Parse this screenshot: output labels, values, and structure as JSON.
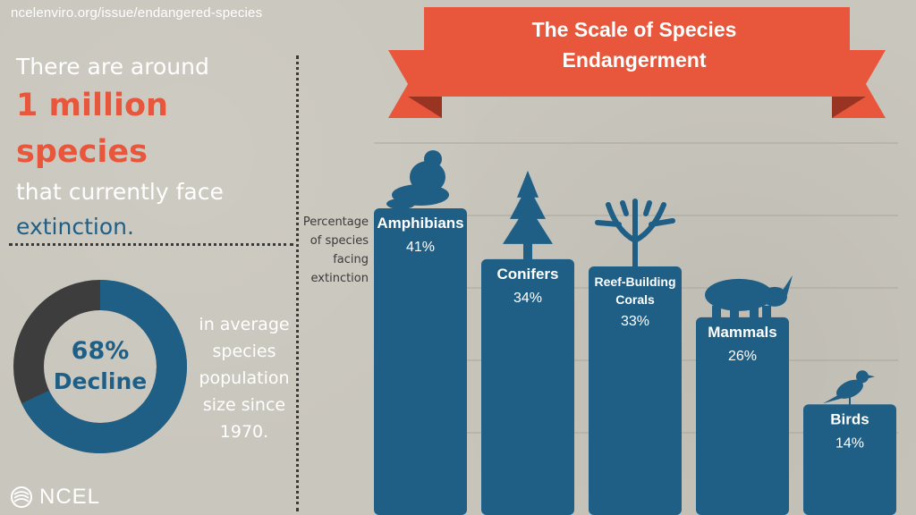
{
  "header": {
    "url": "ncelenviro.org/issue/endangered-species"
  },
  "headline": {
    "line1": "There are around",
    "line2": "1 million species",
    "line3": "that currently face",
    "line4": "extinction."
  },
  "donut": {
    "value": 68,
    "percent_label": "68%",
    "label": "Decline",
    "caption": "in average species population size since 1970."
  },
  "logo": {
    "name": "NCEL"
  },
  "colors": {
    "background": "#c9c6bd",
    "bar": "#1f5f86",
    "accent": "#e8573b",
    "dark": "#3a3a3a"
  },
  "chart_data": {
    "type": "bar",
    "title": "The Scale of Species Endangerment",
    "title_lines": [
      "The Scale of Species",
      "Endangerment"
    ],
    "ylabel_lines": [
      "Percentage",
      "of species",
      "facing",
      "extinction"
    ],
    "ylim": [
      0,
      41
    ],
    "grid": true,
    "categories": [
      "Amphibians",
      "Conifers",
      "Reef-Building Corals",
      "Mammals",
      "Birds"
    ],
    "label_lines": [
      [
        "Amphibians"
      ],
      [
        "Conifers"
      ],
      [
        "Reef-Building",
        "Corals"
      ],
      [
        "Mammals"
      ],
      [
        "Birds"
      ]
    ],
    "values": [
      41,
      34,
      33,
      26,
      14
    ],
    "value_labels": [
      "41%",
      "34%",
      "33%",
      "26%",
      "14%"
    ],
    "icons": [
      "frog-icon",
      "pine-tree-icon",
      "coral-icon",
      "rhino-icon",
      "bird-icon"
    ]
  }
}
